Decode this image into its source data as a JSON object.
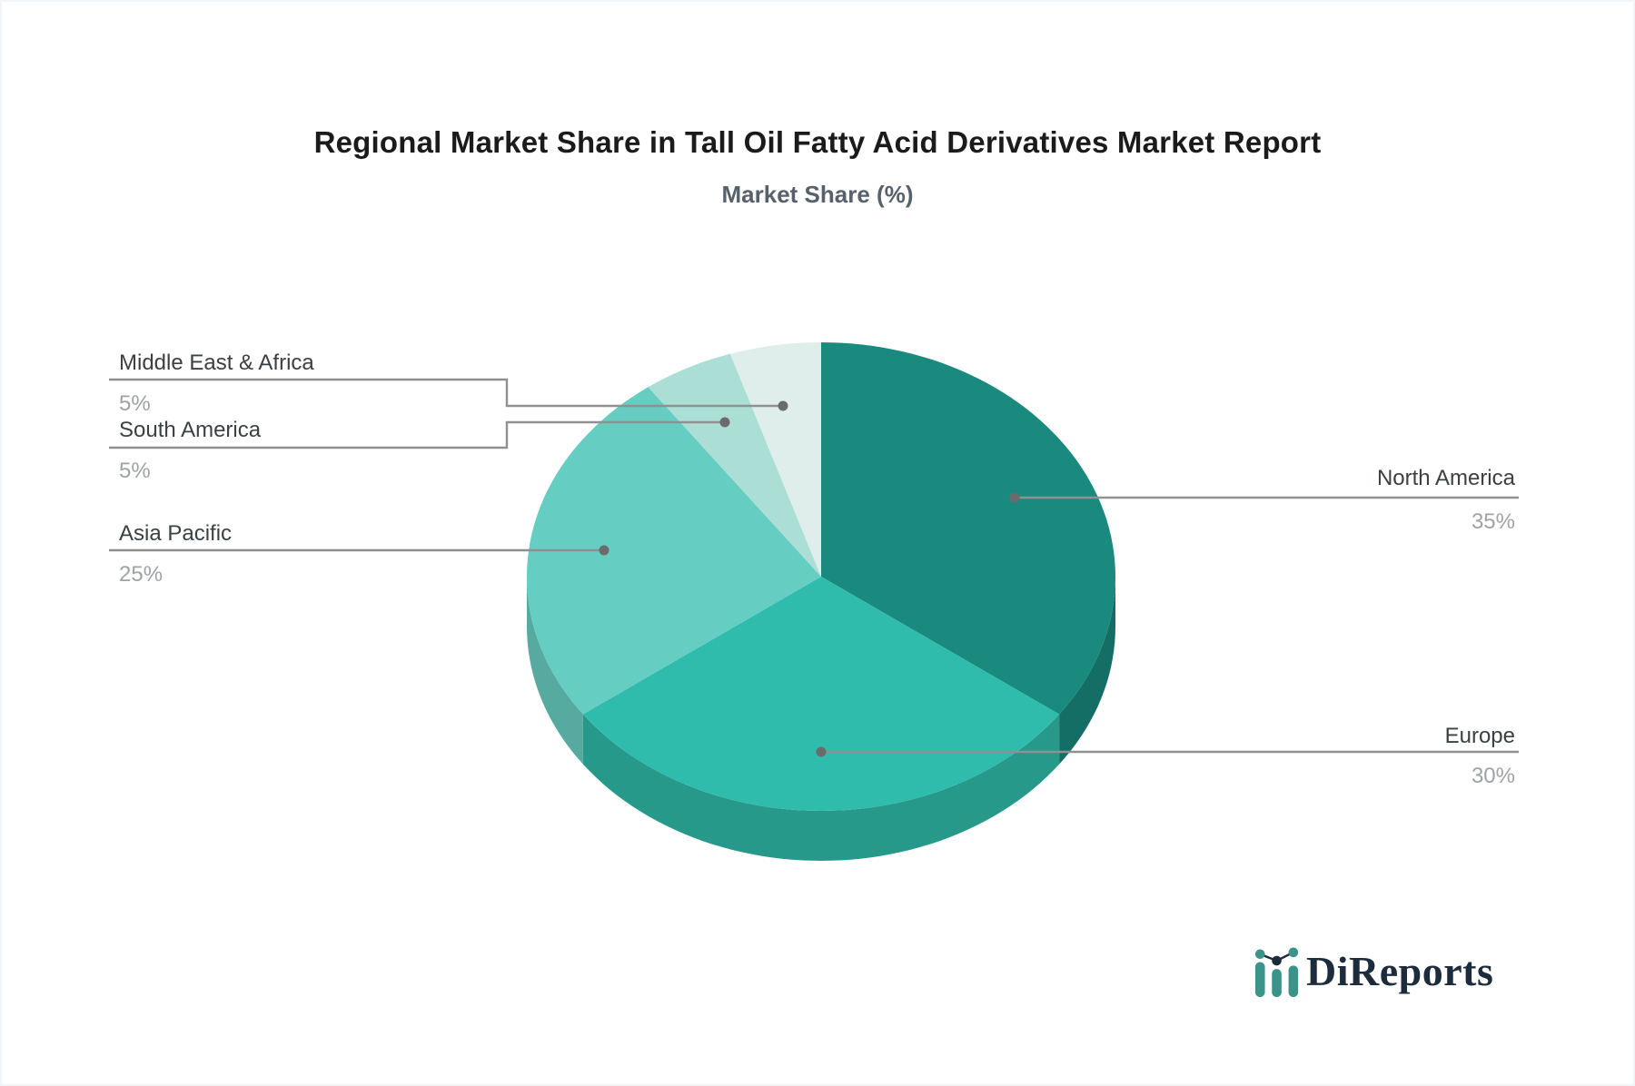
{
  "header": {
    "title": "Regional Market Share in Tall Oil Fatty Acid Derivatives Market Report",
    "subtitle": "Market Share (%)"
  },
  "chart_data": {
    "type": "pie",
    "style": "3d",
    "title": "Regional Market Share in Tall Oil Fatty Acid Derivatives Market Report",
    "subtitle": "Market Share (%)",
    "unit": "%",
    "start_angle_deg": 0,
    "direction": "clockwise",
    "legend_position": "callout-labels",
    "slices": [
      {
        "label": "North America",
        "value": 35,
        "display": "35%",
        "color": "#1A8A7E",
        "side_color": "#156E66"
      },
      {
        "label": "Europe",
        "value": 30,
        "display": "30%",
        "color": "#2FBCAD",
        "side_color": "#27998B"
      },
      {
        "label": "Asia Pacific",
        "value": 25,
        "display": "25%",
        "color": "#66CDC2",
        "side_color": "#57AA9F"
      },
      {
        "label": "South America",
        "value": 5,
        "display": "5%",
        "color": "#ABDFD6",
        "side_color": "#8CC9BF"
      },
      {
        "label": "Middle East & Africa",
        "value": 5,
        "display": "5%",
        "color": "#DFEEEA",
        "side_color": "#C2DDD8"
      }
    ],
    "leader_line_color": "#909090",
    "leader_dot_color": "#6b6b6b"
  },
  "logo": {
    "text": "DiReports",
    "bar_color": "#3C9389",
    "dot_dark_color": "#1C2B3C",
    "text_color": "#1d2c3d"
  }
}
